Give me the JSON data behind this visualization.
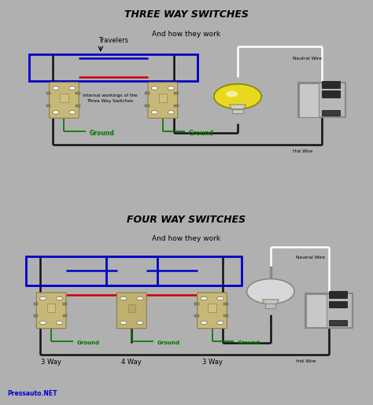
{
  "fig_w": 4.74,
  "fig_h": 5.15,
  "dpi": 100,
  "outer_bg": "#b0b0b0",
  "panel_bg": "#aaaaaa",
  "white_gap": "#d0d0d0",
  "blue": "#0000cc",
  "red": "#cc0000",
  "black": "#111111",
  "green_wire": "#007700",
  "green_text": "#007700",
  "white_wire": "#ffffff",
  "switch_body": "#c8b878",
  "switch_edge": "#8a7a50",
  "panel_gray": "#b8b8b8",
  "panel_dark": "#888888",
  "yellow_bulb": "#e8d820",
  "title1": "THREE WAY SWITCHES",
  "subtitle1": "And how they work",
  "title2": "FOUR WAY SWITCHES",
  "subtitle2": "And how they work",
  "t_travelers": "Travelers",
  "t_internal": "Internal workings of the\nThree Way Switches",
  "t_ground": "Ground",
  "t_neutral": "Neutral Wire",
  "t_hot": "Hot Wire",
  "t_3way": "3 Way",
  "t_4way": "4 Way",
  "t_pressauto": "Pressauto.NET"
}
